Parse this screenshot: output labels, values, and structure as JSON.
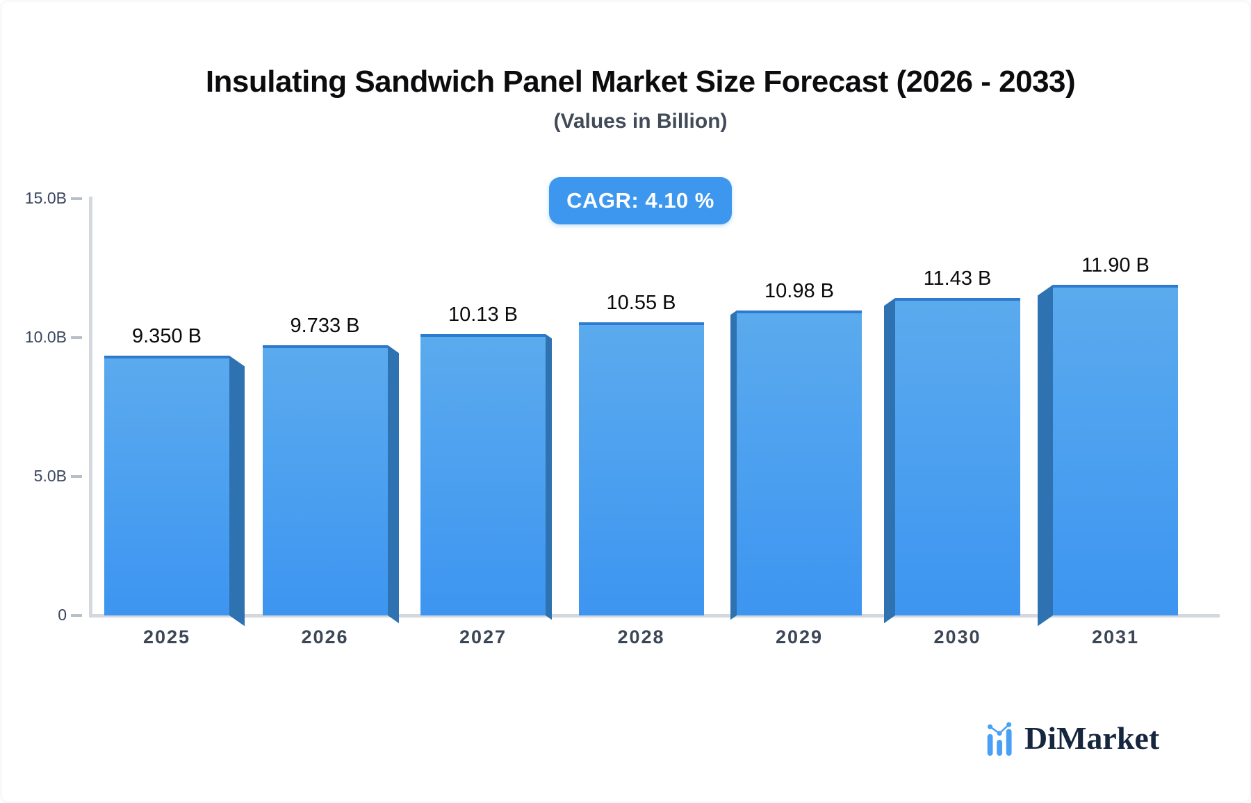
{
  "header": {
    "title": "Insulating Sandwich Panel Market Size Forecast (2026 - 2033)",
    "subtitle": "(Values in Billion)",
    "cagr_label": "CAGR: 4.10 %"
  },
  "chart_data": {
    "type": "bar",
    "title": "Insulating Sandwich Panel Market Size Forecast (2026 - 2033)",
    "subtitle": "(Values in Billion)",
    "annotation": "CAGR: 4.10 %",
    "categories": [
      "2025",
      "2026",
      "2027",
      "2028",
      "2029",
      "2030",
      "2031"
    ],
    "values": [
      9.35,
      9.733,
      10.13,
      10.55,
      10.98,
      11.43,
      11.9
    ],
    "value_labels": [
      "9.350 B",
      "9.733 B",
      "10.13 B",
      "10.55 B",
      "10.98 B",
      "11.43 B",
      "11.90 B"
    ],
    "y_ticks": [
      {
        "label": "15.0B",
        "value": 15
      },
      {
        "label": "10.0B",
        "value": 10
      },
      {
        "label": "5.0B",
        "value": 5
      },
      {
        "label": "0",
        "value": 0
      }
    ],
    "ylim": [
      0,
      15
    ],
    "grid": false,
    "legend": false,
    "style_3d": true,
    "colors": {
      "bar_gradient_top": "#5baaee",
      "bar_gradient_bottom": "#3d95f0",
      "bar_side": "#2e72b2",
      "bar_top_edge": "#2d7bce",
      "axis": "#d4d8de",
      "tick_label": "#39455e",
      "category_label": "#3b4656",
      "badge_bg": "#3e97ef",
      "badge_text": "#ffffff"
    }
  },
  "logo": {
    "text": "DiMarket",
    "icon": "mini-bar-line-chart-icon",
    "icon_color": "#4aa0f4",
    "text_color": "#16263f"
  }
}
